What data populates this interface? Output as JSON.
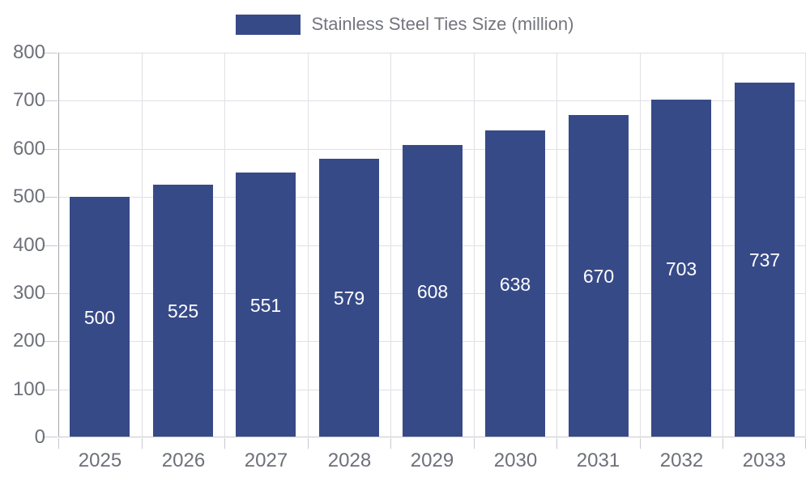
{
  "chart_data": {
    "type": "bar",
    "title": "Stainless Steel Ties Size (million)",
    "legend_position": "top-center",
    "categories": [
      "2025",
      "2026",
      "2027",
      "2028",
      "2029",
      "2030",
      "2031",
      "2032",
      "2033"
    ],
    "values": [
      500,
      525,
      551,
      579,
      608,
      638,
      670,
      703,
      737
    ],
    "xlabel": "",
    "ylabel": "",
    "ylim": [
      0,
      800
    ],
    "yticks": [
      0,
      100,
      200,
      300,
      400,
      500,
      600,
      700,
      800
    ],
    "grid": true,
    "value_labels_position": "inside-middle",
    "colors": {
      "bar": "#374a88",
      "value_label": "#ffffff",
      "axis_text": "#6e7079",
      "legend_text": "#74757d",
      "grid": "#e0e0e6",
      "y_axis_line": "#a6a6ac",
      "x_axis_line": "#c9c9ce",
      "tick": "#c9c9ce"
    }
  }
}
